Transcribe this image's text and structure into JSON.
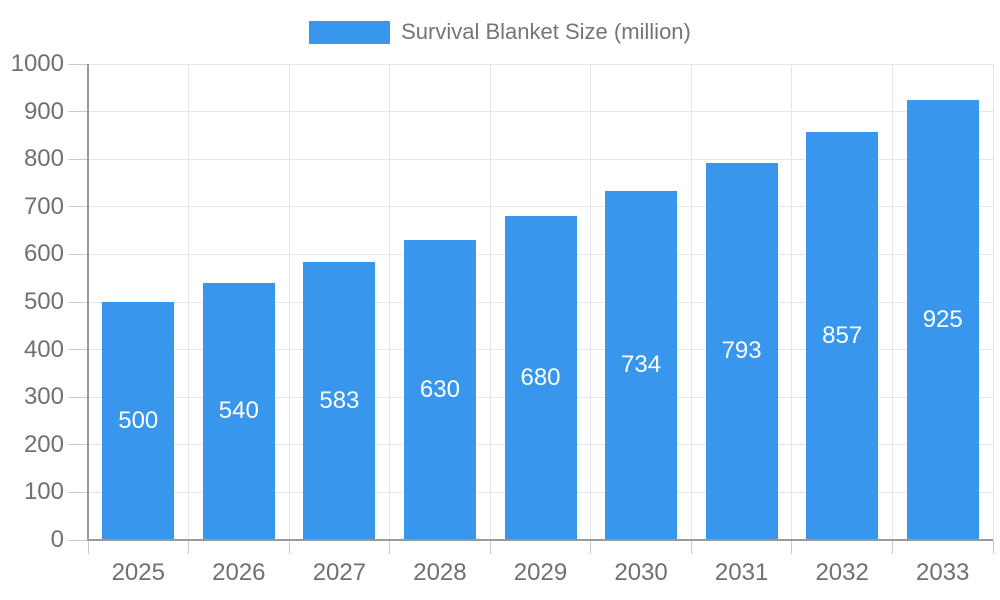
{
  "chart_data": {
    "type": "bar",
    "title": "Survival Blanket Size (million)",
    "series_name": "Survival Blanket Size (million)",
    "categories": [
      "2025",
      "2026",
      "2027",
      "2028",
      "2029",
      "2030",
      "2031",
      "2032",
      "2033"
    ],
    "values": [
      500,
      540,
      583,
      630,
      680,
      734,
      793,
      857,
      925
    ],
    "xlabel": "",
    "ylabel": "",
    "ylim": [
      0,
      1000
    ],
    "ytick_step": 100,
    "ytick_labels": [
      "0",
      "100",
      "200",
      "300",
      "400",
      "500",
      "600",
      "700",
      "800",
      "900",
      "1000"
    ],
    "grid": true,
    "legend_position": "top",
    "value_labels_inside_bars": true,
    "colors": {
      "bar": "#3896ec",
      "grid": "#e6e6e6",
      "tick": "#c9c9c9",
      "axis": "#999999",
      "axis_text": "#707070",
      "legend_text": "#757575",
      "value_text": "#ffffff",
      "background": "#ffffff"
    }
  }
}
